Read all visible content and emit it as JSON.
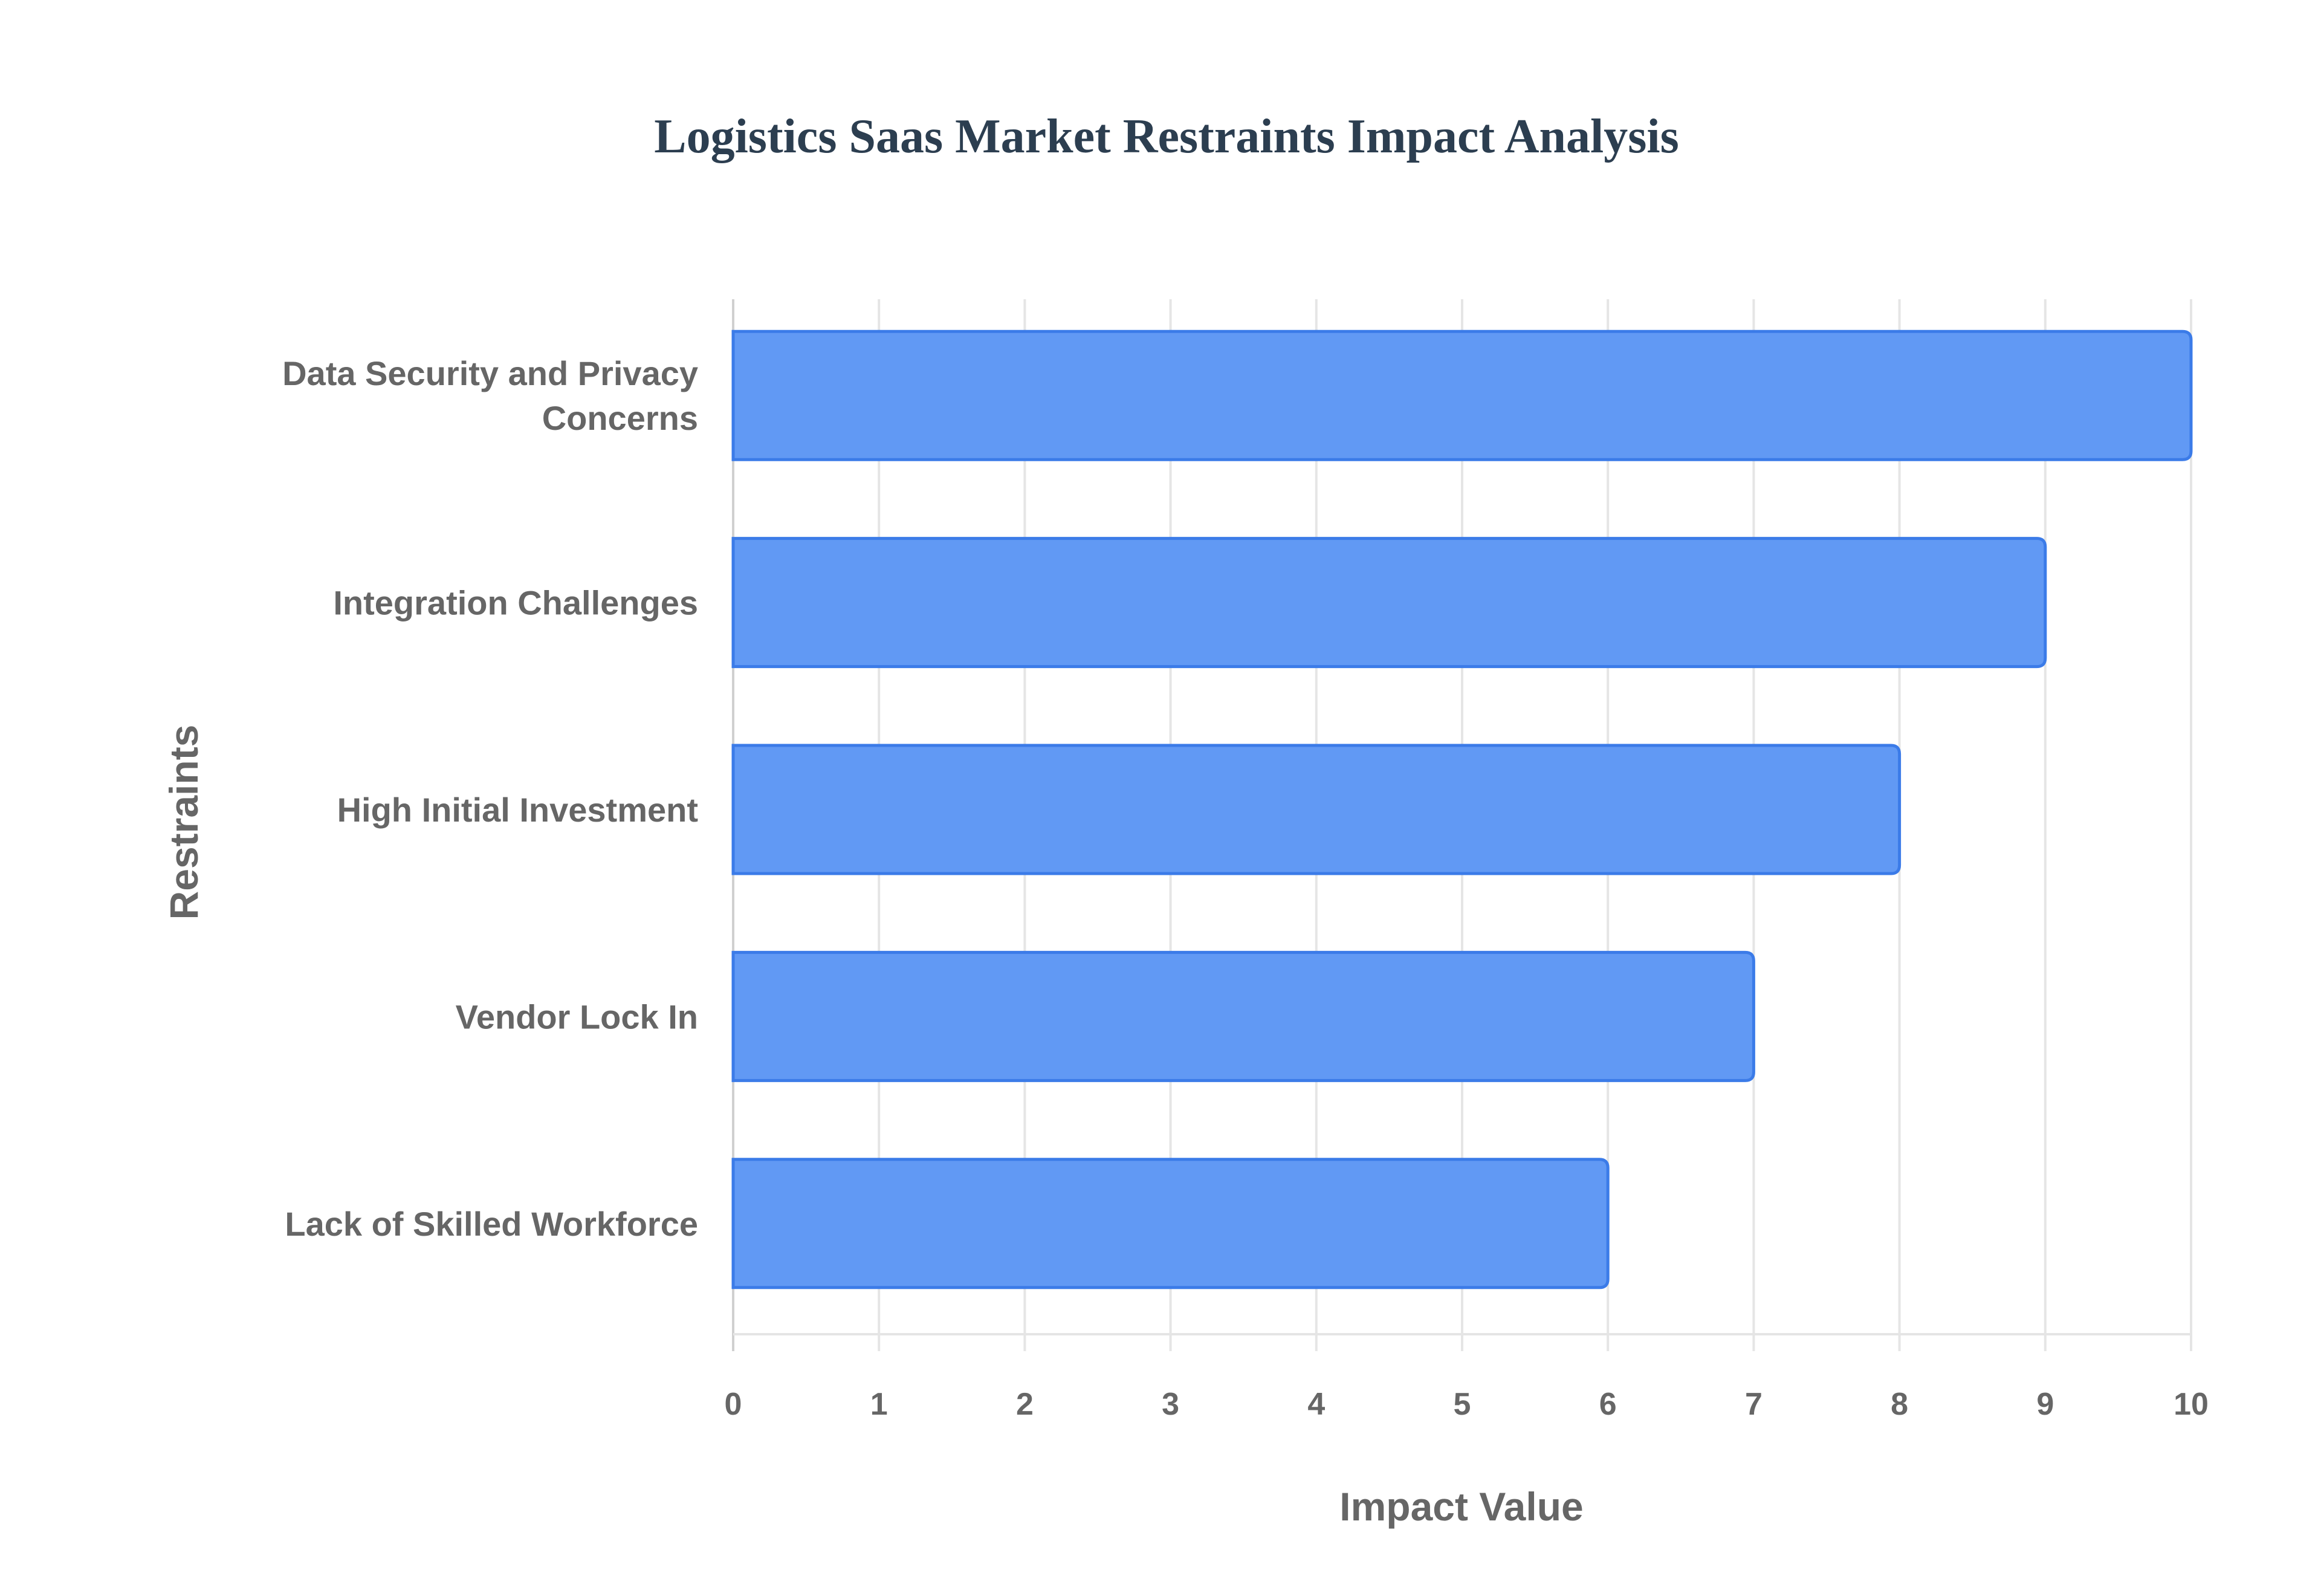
{
  "chart_data": {
    "type": "bar",
    "orientation": "horizontal",
    "title": "Logistics Saas Market Restraints Impact Analysis",
    "xlabel": "Impact Value",
    "ylabel": "Restraints",
    "categories": [
      "Data Security and Privacy Concerns",
      "Integration Challenges",
      "High Initial Investment",
      "Vendor Lock In",
      "Lack of Skilled Workforce"
    ],
    "category_lines": [
      [
        "Data Security and Privacy",
        "Concerns"
      ],
      [
        "Integration Challenges"
      ],
      [
        "High Initial Investment"
      ],
      [
        "Vendor Lock In"
      ],
      [
        "Lack of Skilled Workforce"
      ]
    ],
    "values": [
      10,
      9,
      8,
      7,
      6
    ],
    "xlim": [
      0,
      10
    ],
    "xticks": [
      "0",
      "1",
      "2",
      "3",
      "4",
      "5",
      "6",
      "7",
      "8",
      "9",
      "10"
    ],
    "grid": true,
    "legend": "none",
    "colors": {
      "bar_fill": "#6199f4",
      "bar_border": "#3b7be8",
      "title": "#2c3e50",
      "text": "#666666",
      "grid": "#e5e5e5"
    }
  }
}
